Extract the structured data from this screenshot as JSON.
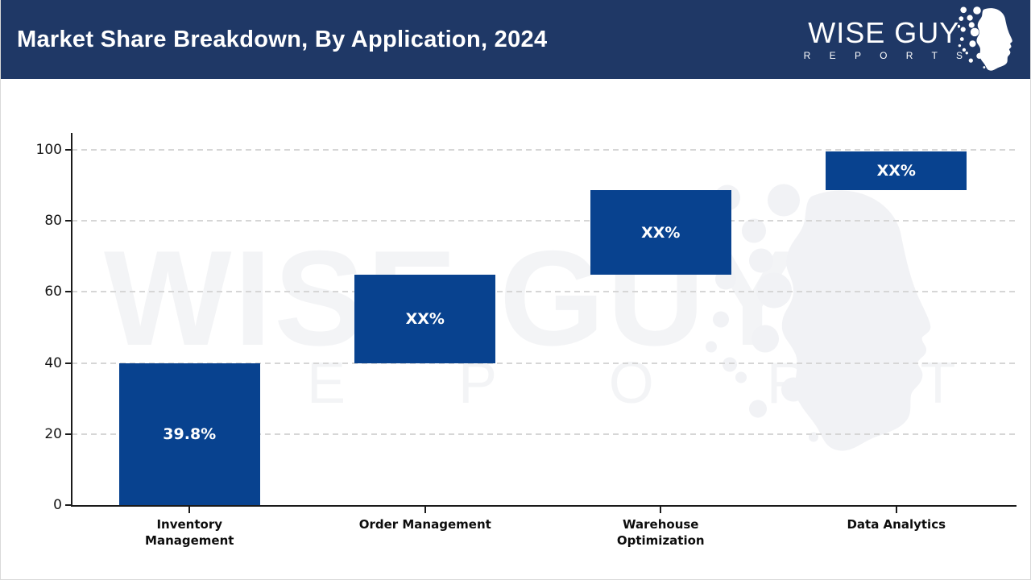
{
  "header": {
    "title": "Market Share Breakdown, By Application, 2024",
    "logo": {
      "name_line": "WISE GUY",
      "sub_line": "R E P O R T S"
    }
  },
  "watermark": {
    "line1": "WISE GUY",
    "line2": "R E P O R T S"
  },
  "chart_data": {
    "type": "bar",
    "subtype": "waterfall-floating-segments",
    "title": "Market Share Breakdown, By Application, 2024",
    "categories": [
      "Inventory Management",
      "Order Management",
      "Warehouse Optimization",
      "Data Analytics"
    ],
    "category_label_lines": [
      [
        "Inventory",
        "Management"
      ],
      [
        "Order Management"
      ],
      [
        "Warehouse",
        "Optimization"
      ],
      [
        "Data Analytics"
      ]
    ],
    "segments": [
      {
        "category": "Inventory Management",
        "start": 0,
        "end": 39.8,
        "label": "39.8%"
      },
      {
        "category": "Order Management",
        "start": 39.8,
        "end": 64.8,
        "label": "XX%"
      },
      {
        "category": "Warehouse Optimization",
        "start": 64.8,
        "end": 88.7,
        "label": "XX%"
      },
      {
        "category": "Data Analytics",
        "start": 88.7,
        "end": 99.6,
        "label": "XX%"
      }
    ],
    "yticks": [
      0,
      20,
      40,
      60,
      80,
      100
    ],
    "ylim": [
      0,
      105
    ],
    "xlabel": "",
    "ylabel": "",
    "grid": "dashed-horizontal",
    "legend": "none"
  },
  "colors": {
    "header_bg": "#1f3866",
    "bar": "#08428f",
    "grid": "#d6d6d6",
    "axis": "#1a1a1a",
    "watermark": "#f3f4f6",
    "card_border": "#d9d9d9",
    "bar_label": "#ffffff"
  }
}
